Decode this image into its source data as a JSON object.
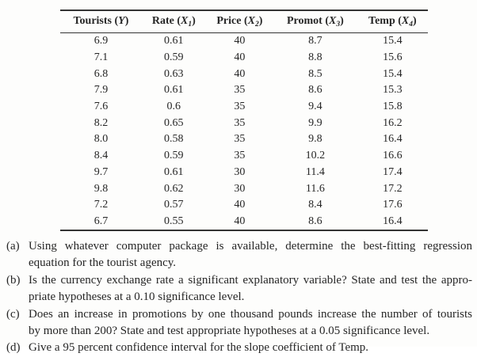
{
  "page": {
    "background": "#fdfdfc",
    "text_color": "#262626",
    "rule_color": "#343434"
  },
  "table": {
    "headers": [
      {
        "name": "Tourists",
        "symbol": "Y",
        "sub": ""
      },
      {
        "name": "Rate",
        "symbol": "X",
        "sub": "1"
      },
      {
        "name": "Price",
        "symbol": "X",
        "sub": "2"
      },
      {
        "name": "Promot",
        "symbol": "X",
        "sub": "3"
      },
      {
        "name": "Temp",
        "symbol": "X",
        "sub": "4"
      }
    ],
    "rows": [
      [
        "6.9",
        "0.61",
        "40",
        "8.7",
        "15.4"
      ],
      [
        "7.1",
        "0.59",
        "40",
        "8.8",
        "15.6"
      ],
      [
        "6.8",
        "0.63",
        "40",
        "8.5",
        "15.4"
      ],
      [
        "7.9",
        "0.61",
        "35",
        "8.6",
        "15.3"
      ],
      [
        "7.6",
        "0.6",
        "35",
        "9.4",
        "15.8"
      ],
      [
        "8.2",
        "0.65",
        "35",
        "9.9",
        "16.2"
      ],
      [
        "8.0",
        "0.58",
        "35",
        "9.8",
        "16.4"
      ],
      [
        "8.4",
        "0.59",
        "35",
        "10.2",
        "16.6"
      ],
      [
        "9.7",
        "0.61",
        "30",
        "11.4",
        "17.4"
      ],
      [
        "9.8",
        "0.62",
        "30",
        "11.6",
        "17.2"
      ],
      [
        "7.2",
        "0.57",
        "40",
        "8.4",
        "17.6"
      ],
      [
        "6.7",
        "0.55",
        "40",
        "8.6",
        "16.4"
      ]
    ]
  },
  "questions": [
    {
      "label": "(a)",
      "lines": [
        "Using whatever computer package is available, determine the best-fitting regression",
        "equation for the tourist agency."
      ]
    },
    {
      "label": "(b)",
      "lines": [
        "Is the currency exchange rate a significant explanatory variable? State and test the appro-",
        "priate hypotheses at a 0.10 significance level."
      ]
    },
    {
      "label": "(c)",
      "lines": [
        "Does an increase in promotions by one thousand pounds increase the number of tourists",
        "by more than 200? State and test appropriate hypotheses at a 0.05 significance level."
      ]
    },
    {
      "label": "(d)",
      "lines": [
        "Give a 95 percent confidence interval for the slope coefficient of Temp."
      ]
    }
  ]
}
